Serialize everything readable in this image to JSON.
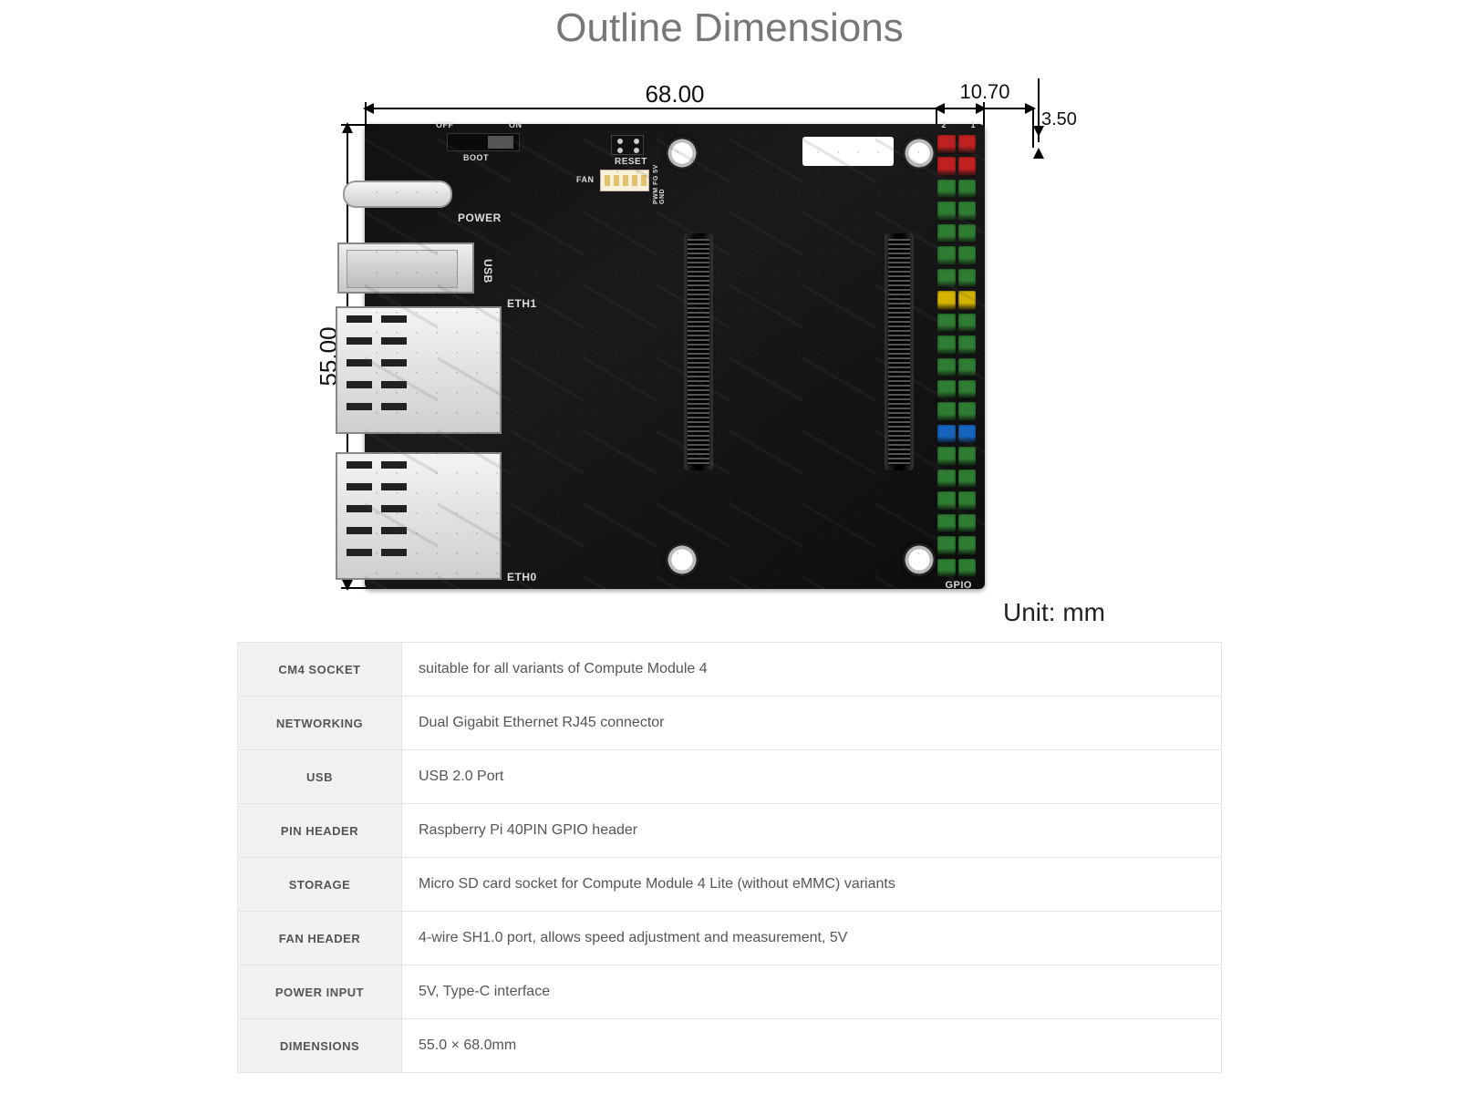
{
  "title": "Outline Dimensions",
  "unit_label": "Unit: mm",
  "dimensions": {
    "width": "68.00",
    "height": "55.00",
    "gpio_offset": "10.70",
    "edge_margin": "3.50"
  },
  "silk": {
    "power": "POWER",
    "usb": "USB",
    "eth1": "ETH1",
    "eth0": "ETH0",
    "reset": "RESET",
    "gpio": "GPIO",
    "boot_on": "ON",
    "boot_off": "OFF",
    "boot": "BOOT",
    "fan": "FAN",
    "fan_pins": "PWM FG 5V GND",
    "col1": "1",
    "col2": "2"
  },
  "gpio_rows": [
    [
      "#c02020",
      "#c02020"
    ],
    [
      "#c02020",
      "#c02020"
    ],
    [
      "#2e7d32",
      "#2e7d32"
    ],
    [
      "#2e7d32",
      "#2e7d32"
    ],
    [
      "#2e7d32",
      "#2e7d32"
    ],
    [
      "#2e7d32",
      "#2e7d32"
    ],
    [
      "#2e7d32",
      "#2e7d32"
    ],
    [
      "#d4b400",
      "#d4b400"
    ],
    [
      "#2e7d32",
      "#2e7d32"
    ],
    [
      "#2e7d32",
      "#2e7d32"
    ],
    [
      "#2e7d32",
      "#2e7d32"
    ],
    [
      "#2e7d32",
      "#2e7d32"
    ],
    [
      "#2e7d32",
      "#2e7d32"
    ],
    [
      "#1565c0",
      "#1565c0"
    ],
    [
      "#2e7d32",
      "#2e7d32"
    ],
    [
      "#2e7d32",
      "#2e7d32"
    ],
    [
      "#2e7d32",
      "#2e7d32"
    ],
    [
      "#2e7d32",
      "#2e7d32"
    ],
    [
      "#2e7d32",
      "#2e7d32"
    ],
    [
      "#2e7d32",
      "#2e7d32"
    ]
  ],
  "specs": [
    {
      "label": "CM4 SOCKET",
      "value": "suitable for all variants of Compute Module 4"
    },
    {
      "label": "NETWORKING",
      "value": "Dual Gigabit Ethernet RJ45 connector"
    },
    {
      "label": "USB",
      "value": "USB 2.0 Port"
    },
    {
      "label": "PIN HEADER",
      "value": "Raspberry Pi 40PIN GPIO header"
    },
    {
      "label": "STORAGE",
      "value": "Micro SD card socket for Compute Module 4 Lite (without eMMC) variants"
    },
    {
      "label": "FAN HEADER",
      "value": "4-wire SH1.0 port, allows speed adjustment and measurement, 5V"
    },
    {
      "label": "POWER INPUT",
      "value": "5V, Type-C interface"
    },
    {
      "label": "DIMENSIONS",
      "value": "55.0 × 68.0mm"
    }
  ],
  "colors": {
    "title": "#777777",
    "pcb": "#111111",
    "metal": "#d0d0d0",
    "line": "#000000",
    "table_header_bg": "#f1f1f1",
    "table_border": "#e4e4e4",
    "text": "#555555"
  }
}
